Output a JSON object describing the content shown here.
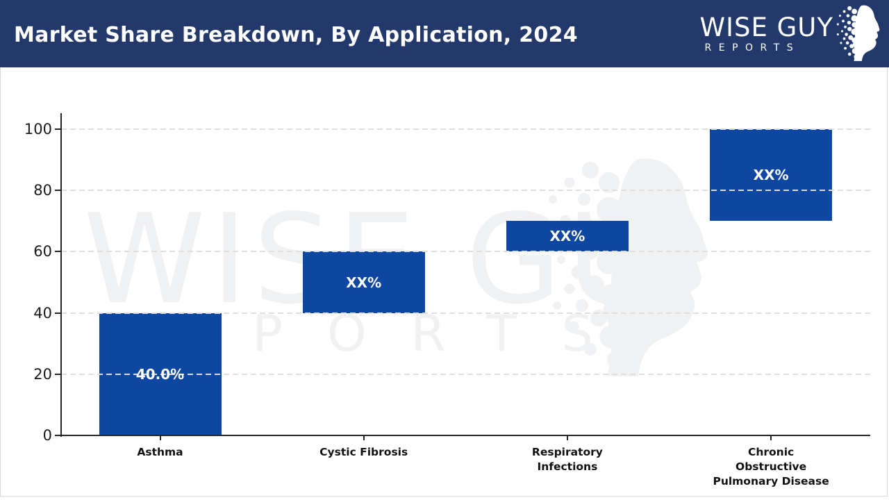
{
  "header": {
    "bg_color": "#24396b",
    "title": "Market Share Breakdown, By Application, 2024",
    "logo": {
      "line1": "WISE GUY",
      "line2": "REPORTS"
    }
  },
  "watermark": {
    "line1": "WISE GU",
    "line2": "REPORTS"
  },
  "chart_data": {
    "type": "bar",
    "variant": "waterfall",
    "title": "Market Share Breakdown, By Application, 2024",
    "categories": [
      [
        "Asthma"
      ],
      [
        "Cystic Fibrosis"
      ],
      [
        "Respiratory",
        "Infections"
      ],
      [
        "Chronic",
        "Obstructive",
        "Pulmonary Disease"
      ]
    ],
    "values": [
      40,
      20,
      10,
      30
    ],
    "segment_start": [
      0,
      40,
      60,
      70
    ],
    "segment_end": [
      40,
      60,
      70,
      100
    ],
    "bar_labels": [
      "40.0%",
      "XX%",
      "XX%",
      "XX%"
    ],
    "yticks": [
      0,
      20,
      40,
      60,
      80,
      100
    ],
    "ylim": [
      0,
      105
    ],
    "xlabel": "",
    "ylabel": "",
    "grid": "horizontal-dashed",
    "legend": "none",
    "bar_color": "#0d47a1",
    "bar_label_color": "#ffffff",
    "axis_color": "#262626",
    "grid_color": "#dedede",
    "tick_label_color": "#1a1a1a"
  }
}
